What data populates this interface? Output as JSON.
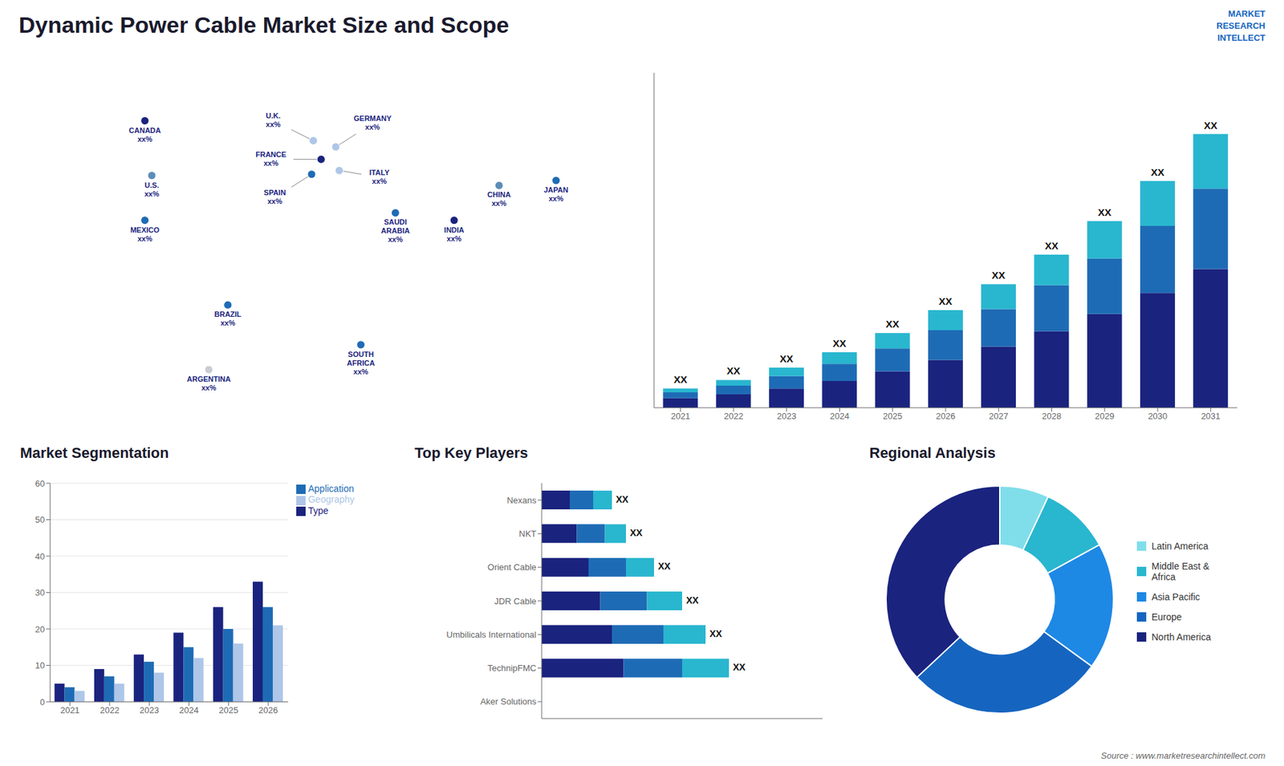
{
  "title": "Dynamic Power Cable Market Size and Scope",
  "annotations": [
    "MARKET\nRESEARCH\nINTELLECT",
    "Source : www.marketresearchintellect.com"
  ],
  "chart_data": [
    {
      "type": "map",
      "xlim": [
        -180,
        180
      ],
      "ylim": [
        -60,
        85
      ],
      "tick_labels": false,
      "annotations": [
        {
          "text": "CANADA\nxx%",
          "x": -100,
          "y": 62,
          "color": "#1a237e"
        },
        {
          "text": "U.S.\nxx%",
          "x": -96,
          "y": 40,
          "color": "#5b8db8"
        },
        {
          "text": "MEXICO\nxx%",
          "x": -100,
          "y": 22,
          "color": "#1e6bb5"
        },
        {
          "text": "BRAZIL\nxx%",
          "x": -52,
          "y": -12,
          "color": "#1e6bb5"
        },
        {
          "text": "ARGENTINA\nxx%",
          "x": -63,
          "y": -38,
          "color": "#c8cdd4"
        },
        {
          "text": "U.K.\nxx%",
          "x": -2.5,
          "y": 54,
          "color": "#aec6e8"
        },
        {
          "text": "FRANCE\nxx%",
          "x": 2,
          "y": 46.5,
          "color": "#1a237e"
        },
        {
          "text": "SPAIN\nxx%",
          "x": -3.5,
          "y": 40.5,
          "color": "#1e6bb5"
        },
        {
          "text": "GERMANY\nxx%",
          "x": 10.5,
          "y": 51.5,
          "color": "#aec6e8"
        },
        {
          "text": "ITALY\nxx%",
          "x": 12.5,
          "y": 42,
          "color": "#aec6e8"
        },
        {
          "text": "SAUDI\nARABIA\nxx%",
          "x": 45,
          "y": 25,
          "color": "#1e6bb5"
        },
        {
          "text": "SOUTH\nAFRICA\nxx%",
          "x": 25,
          "y": -28,
          "color": "#1e6bb5"
        },
        {
          "text": "CHINA\nxx%",
          "x": 105,
          "y": 36,
          "color": "#5b8db8"
        },
        {
          "text": "JAPAN\nxx%",
          "x": 138,
          "y": 38,
          "color": "#1e6bb5"
        },
        {
          "text": "INDIA\nxx%",
          "x": 79,
          "y": 22,
          "color": "#1a237e"
        }
      ]
    },
    {
      "type": "bar",
      "stacked": true,
      "categories": [
        "2021",
        "2022",
        "2023",
        "2024",
        "2025",
        "2026",
        "2027",
        "2028",
        "2029",
        "2030",
        "2031"
      ],
      "series": [
        {
          "color": "#1a237e",
          "values": [
            1.0,
            1.4,
            2.0,
            2.8,
            3.8,
            5.0,
            6.4,
            8.0,
            9.8,
            12.0,
            14.5
          ]
        },
        {
          "color": "#1e6bb5",
          "values": [
            0.6,
            0.9,
            1.3,
            1.8,
            2.4,
            3.1,
            3.9,
            4.8,
            5.8,
            7.0,
            8.4
          ]
        },
        {
          "color": "#29b6cf",
          "values": [
            0.4,
            0.6,
            0.9,
            1.2,
            1.6,
            2.1,
            2.6,
            3.2,
            3.9,
            4.7,
            5.7
          ]
        }
      ],
      "ylim": [
        0,
        35
      ],
      "tick_labels": "x",
      "annotations": [
        {
          "text": "XX",
          "x": "2021"
        },
        {
          "text": "XX",
          "x": "2022"
        },
        {
          "text": "XX",
          "x": "2023"
        },
        {
          "text": "XX",
          "x": "2024"
        },
        {
          "text": "XX",
          "x": "2025"
        },
        {
          "text": "XX",
          "x": "2026"
        },
        {
          "text": "XX",
          "x": "2027"
        },
        {
          "text": "XX",
          "x": "2028"
        },
        {
          "text": "XX",
          "x": "2029"
        },
        {
          "text": "XX",
          "x": "2030"
        },
        {
          "text": "XX",
          "x": "2031"
        }
      ]
    },
    {
      "type": "bar",
      "title": "Market Segmentation",
      "categories": [
        "2021",
        "2022",
        "2023",
        "2024",
        "2025",
        "2026"
      ],
      "series": [
        {
          "name": "Type",
          "color": "#1a237e",
          "values": [
            5,
            9,
            13,
            19,
            26,
            33
          ]
        },
        {
          "name": "Application",
          "color": "#1e6bb5",
          "values": [
            4,
            7,
            11,
            15,
            20,
            26
          ]
        },
        {
          "name": "Geography",
          "color": "#aec6e8",
          "values": [
            3,
            5,
            8,
            12,
            16,
            21
          ]
        }
      ],
      "ylim": [
        0,
        60
      ],
      "yticks": [
        0,
        10,
        20,
        30,
        40,
        50,
        60
      ],
      "grid": true,
      "legend": "right"
    },
    {
      "type": "bar",
      "orientation": "horizontal",
      "stacked": true,
      "title": "Top Key Players",
      "categories": [
        "Aker Solutions",
        "TechnipFMC",
        "Umbilicals International",
        "JDR Cable",
        "Orient Cable",
        "NKT",
        "Nexans"
      ],
      "series": [
        {
          "color": "#1a237e",
          "values": [
            0,
            3.5,
            3.0,
            2.5,
            2.0,
            1.5,
            1.2
          ]
        },
        {
          "color": "#1e6bb5",
          "values": [
            0,
            2.5,
            2.2,
            2.0,
            1.6,
            1.2,
            1.0
          ]
        },
        {
          "color": "#29b6cf",
          "values": [
            0,
            2.0,
            1.8,
            1.5,
            1.2,
            0.9,
            0.8
          ]
        }
      ],
      "xlim": [
        0,
        12
      ],
      "tick_labels": "y",
      "annotations": [
        {
          "text": "XX",
          "x": "TechnipFMC"
        },
        {
          "text": "XX",
          "x": "Umbilicals International"
        },
        {
          "text": "XX",
          "x": "JDR Cable"
        },
        {
          "text": "XX",
          "x": "Orient Cable"
        },
        {
          "text": "XX",
          "x": "NKT"
        },
        {
          "text": "XX",
          "x": "Nexans"
        }
      ]
    },
    {
      "type": "pie",
      "title": "Regional Analysis",
      "categories": [
        "Latin America",
        "Middle East &\nAfrica",
        "Asia Pacific",
        "Europe",
        "North America"
      ],
      "values": [
        7,
        10,
        18,
        28,
        37
      ],
      "colors": [
        "#80deea",
        "#29b6cf",
        "#1e88e5",
        "#1565c0",
        "#1a237e"
      ],
      "legend": "right"
    }
  ]
}
